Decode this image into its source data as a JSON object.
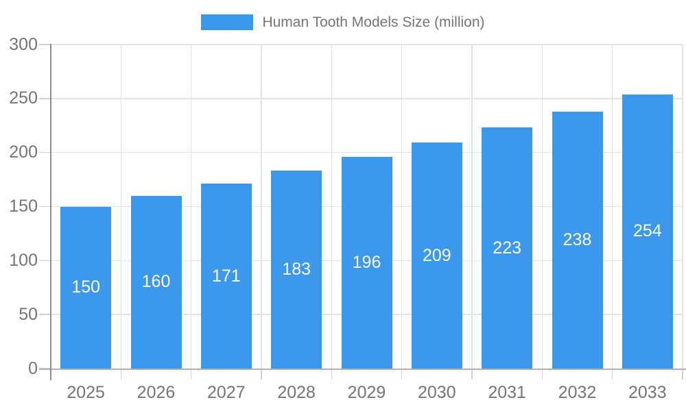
{
  "chart_data": {
    "type": "bar",
    "title": "Human Tooth Models Size (million)",
    "categories": [
      "2025",
      "2026",
      "2027",
      "2028",
      "2029",
      "2030",
      "2031",
      "2032",
      "2033"
    ],
    "values": [
      150,
      160,
      171,
      183,
      196,
      209,
      223,
      238,
      254
    ],
    "xlabel": "",
    "ylabel": "",
    "ylim": [
      0,
      300
    ],
    "y_ticks": [
      0,
      50,
      100,
      150,
      200,
      250,
      300
    ],
    "grid": true,
    "legend_position": "top-center",
    "value_labels": "inside-center"
  },
  "legend": {
    "label": "Human Tooth Models Size (million)"
  },
  "colors": {
    "bar": "#3B98EB",
    "value_label": "#FFFFFF",
    "axis_label": "#757575",
    "legend_label": "#757575",
    "gridline": "#E3E3E3",
    "y_axis_line": "#8C8C8C",
    "x_baseline": "#B0B0B0",
    "tick": "#D2D2D2",
    "background": "#FFFFFF"
  }
}
